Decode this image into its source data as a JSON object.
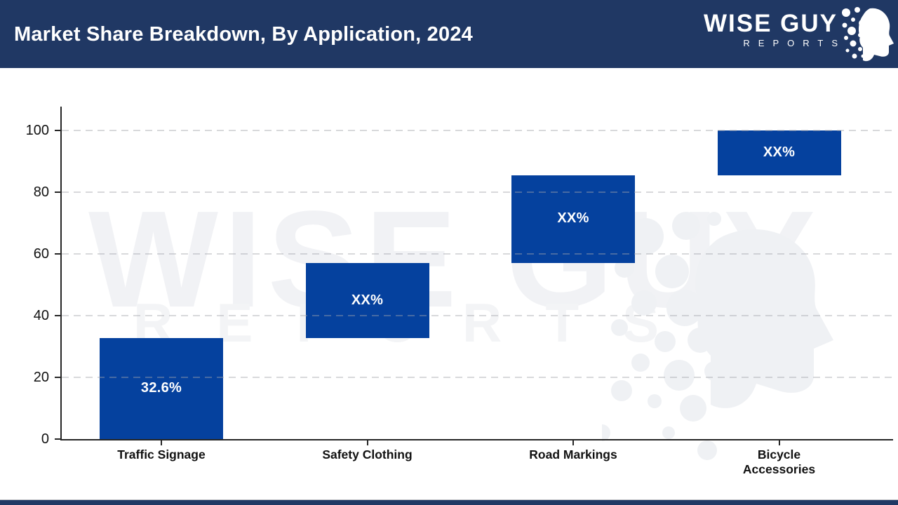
{
  "header": {
    "title": "Market Share Breakdown, By Application, 2024",
    "brand_line1": "WISE GUY",
    "brand_line2": "REPORTS",
    "bg_color": "#203864"
  },
  "watermark": {
    "line1": "WISE GUY",
    "line2": "REPORTS"
  },
  "chart_data": {
    "type": "bar",
    "subtype": "waterfall",
    "title": "Market Share Breakdown, By Application, 2024",
    "categories": [
      "Traffic Signage",
      "Safety Clothing",
      "Road Markings",
      "Bicycle Accessories"
    ],
    "series": [
      {
        "name": "Market Share",
        "segments": [
          {
            "category": "Traffic Signage",
            "start": 0,
            "end": 32.6,
            "label": "32.6%"
          },
          {
            "category": "Safety Clothing",
            "start": 32.6,
            "end": 57.0,
            "label": "XX%"
          },
          {
            "category": "Road Markings",
            "start": 57.0,
            "end": 85.4,
            "label": "XX%"
          },
          {
            "category": "Bicycle Accessories",
            "start": 85.4,
            "end": 100.0,
            "label": "XX%"
          }
        ]
      }
    ],
    "ylim": [
      0,
      100
    ],
    "yticks": [
      0,
      20,
      40,
      60,
      80,
      100
    ],
    "grid": "horizontal-dashed",
    "legend": "none",
    "bar_color": "#05419e",
    "axis_color": "#262626",
    "grid_color": "#d9d9d9",
    "value_label_color": "#ffffff"
  }
}
